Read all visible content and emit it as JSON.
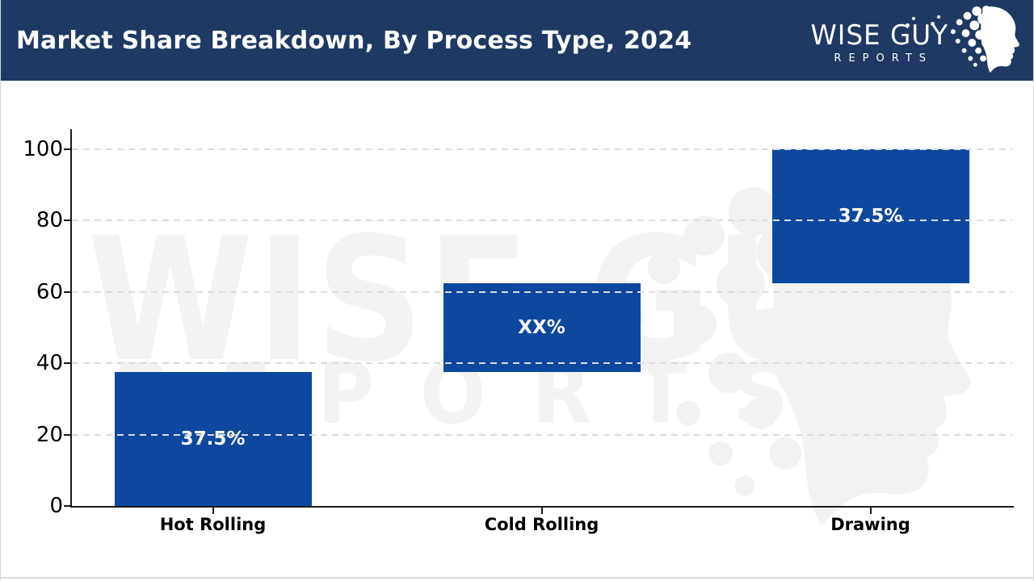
{
  "header": {
    "title": "Market Share Breakdown, By Process Type, 2024",
    "background": "#1f3864",
    "logo": {
      "wordmark": "WISE GUY",
      "sub": "REPORTS"
    }
  },
  "watermark": {
    "wordmark": "WISE GUY",
    "sub": "REPORTS"
  },
  "chart_data": {
    "type": "bar",
    "subtype": "waterfall",
    "title": "Market Share Breakdown, By Process Type, 2024",
    "categories": [
      "Hot Rolling",
      "Cold Rolling",
      "Drawing"
    ],
    "segments": [
      {
        "category": "Hot Rolling",
        "start": 0,
        "end": 37.5,
        "label": "37.5%"
      },
      {
        "category": "Cold Rolling",
        "start": 37.5,
        "end": 62.5,
        "label": "XX%"
      },
      {
        "category": "Drawing",
        "start": 62.5,
        "end": 100,
        "label": "37.5%"
      }
    ],
    "yticks": [
      0,
      20,
      40,
      60,
      80,
      100
    ],
    "ylim": [
      0,
      105
    ],
    "grid": "horizontal-dashed",
    "legend": "none",
    "colors": {
      "bar": "#0d489e",
      "bar_label": "#ffffff",
      "grid": "#dcdcdc",
      "axis": "#1a1a1a",
      "header": "#1f3864"
    }
  }
}
